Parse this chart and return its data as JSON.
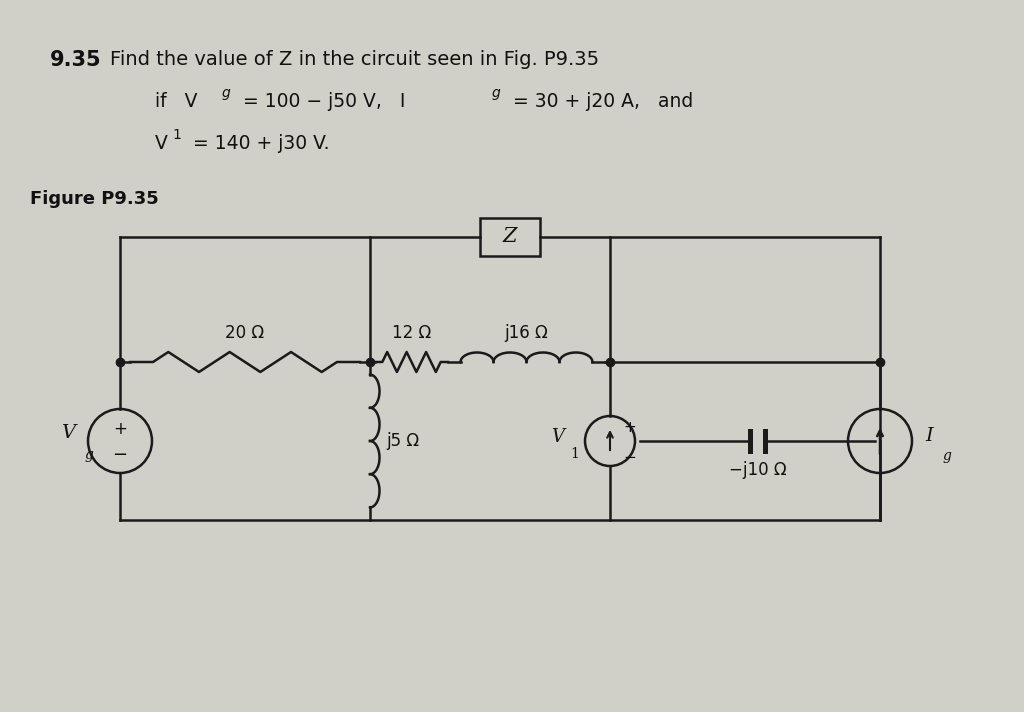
{
  "bg_color": "#d0cfc8",
  "text_color": "#111111",
  "circuit_color": "#1a1a1a",
  "title_number": "9.35",
  "title_text": "Find the value of Z in the circuit seen in Fig. P9.35",
  "line2_pre": "if   V",
  "line2_sub1": "g",
  "line2_mid": " = 100 − j50 V,   I",
  "line2_sub2": "g",
  "line2_end": " = 30 + j20 A,   and",
  "line3_pre": "V",
  "line3_sub": "1",
  "line3_end": " = 140 + j30 V.",
  "figure_label": "Figure P9.35",
  "lbl_20": "20 Ω",
  "lbl_12": "12 Ω",
  "lbl_j16": "j16 Ω",
  "lbl_j5": "j5 Ω",
  "lbl_neg_j10": "−j10 Ω",
  "lbl_Z": "Z",
  "lbl_Vg": "V",
  "lbl_Vg_sub": "g",
  "lbl_V1": "V",
  "lbl_V1_sub": "1",
  "lbl_Ig": "I",
  "lbl_Ig_sub": "g",
  "plus": "+",
  "minus": "−"
}
